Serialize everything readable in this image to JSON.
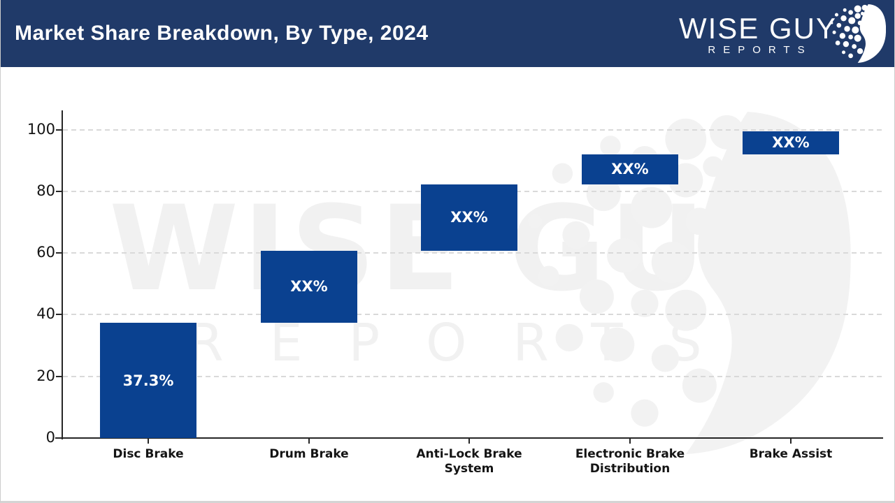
{
  "header": {
    "title": "Market Share Breakdown, By Type, 2024",
    "logo": {
      "line1": "WISE GUY",
      "line2": "REPORTS"
    }
  },
  "watermark": {
    "line1": "WISE GUY",
    "line2": "REPORTS"
  },
  "chart_data": {
    "type": "bar",
    "subtype": "waterfall",
    "title": "Market Share Breakdown, By Type, 2024",
    "categories": [
      "Disc Brake",
      "Drum Brake",
      "Anti-Lock Brake System",
      "Electronic Brake Distribution",
      "Brake Assist"
    ],
    "segments": [
      {
        "category": "Disc Brake",
        "start": 0,
        "end": 37.3,
        "label": "37.3%"
      },
      {
        "category": "Drum Brake",
        "start": 37.3,
        "end": 60.8,
        "label": "XX%"
      },
      {
        "category": "Anti-Lock Brake System",
        "start": 60.8,
        "end": 82.3,
        "label": "XX%"
      },
      {
        "category": "Electronic Brake Distribution",
        "start": 82.3,
        "end": 92.0,
        "label": "XX%"
      },
      {
        "category": "Brake Assist",
        "start": 92.0,
        "end": 99.5,
        "label": "XX%"
      }
    ],
    "yticks": [
      0,
      20,
      40,
      60,
      80,
      100
    ],
    "ylim": [
      0,
      105.7
    ],
    "xlabel": "",
    "ylabel": "",
    "grid": "horizontal-dashed",
    "legend": "none",
    "colors": {
      "bar": "#0a4190",
      "header_bg": "#203a69",
      "grid": "#d9d9d9",
      "axis": "#262626",
      "bar_label": "#ffffff",
      "watermark": "#f1f1f1"
    }
  }
}
